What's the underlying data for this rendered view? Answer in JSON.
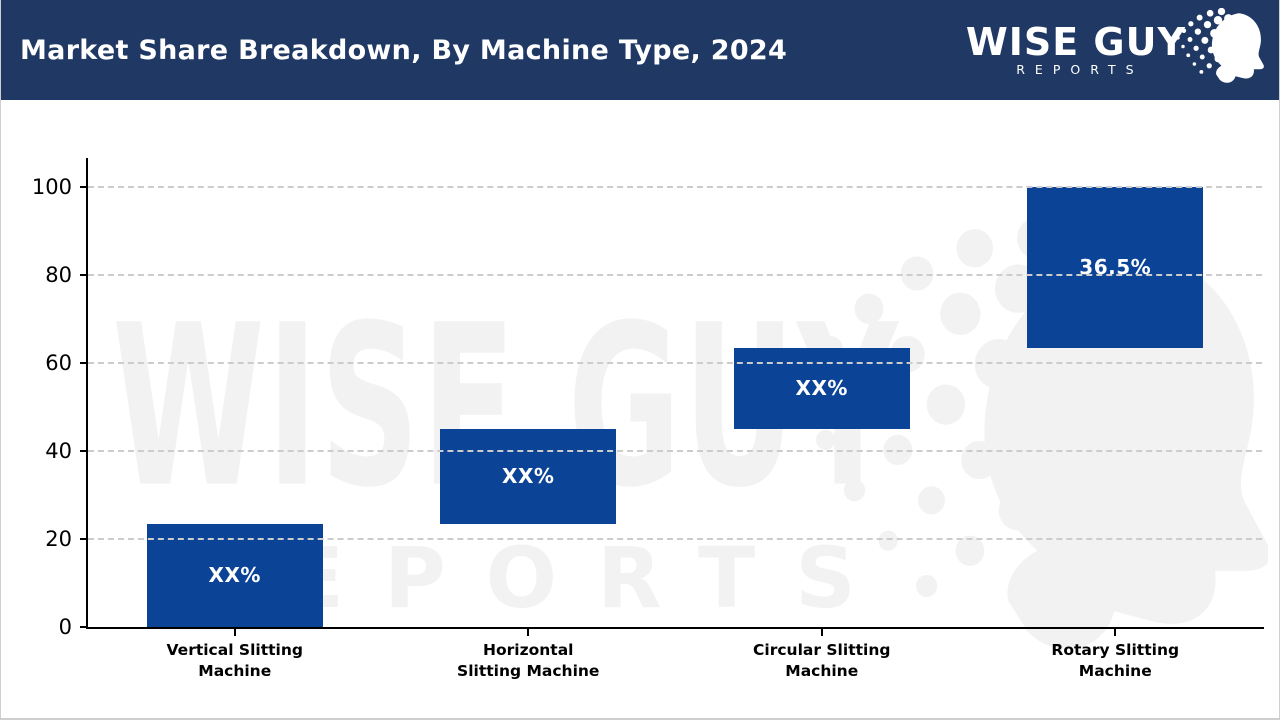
{
  "header": {
    "title": "Market Share Breakdown, By Machine Type, 2024",
    "logo": {
      "brand": "WISE GUY",
      "sub": "REPORTS"
    }
  },
  "watermark": {
    "brand": "WISE GUY",
    "sub": "REPORTS"
  },
  "theme": {
    "header_bg": "#1f3864",
    "bar_blue": "#0b4397",
    "watermark_gray": "#f2f2f2",
    "grid_gray": "#cccccc",
    "axis_black": "#000000"
  },
  "chart_data": {
    "type": "bar",
    "variant": "waterfall",
    "title": "Market Share Breakdown, By Machine Type, 2024",
    "categories": [
      "Vertical Slitting\nMachine",
      "Horizontal\nSlitting Machine",
      "Circular Slitting\nMachine",
      "Rotary Slitting\nMachine"
    ],
    "series": [
      {
        "name": "Market share (%)",
        "start": [
          0,
          23.5,
          45,
          63.5
        ],
        "end": [
          23.5,
          45,
          63.5,
          100
        ],
        "height": [
          23.5,
          21.5,
          18.5,
          36.5
        ]
      }
    ],
    "bar_labels": [
      "XX%",
      "XX%",
      "XX%",
      "36.5%"
    ],
    "xlabel": "",
    "ylabel": "",
    "ylim": [
      0,
      100
    ],
    "yticks": [
      0,
      20,
      40,
      60,
      80,
      100
    ],
    "grid": "horizontal-dashed",
    "legend": "none",
    "bar_color": "#0b4397",
    "bar_label_color": "#ffffff"
  }
}
